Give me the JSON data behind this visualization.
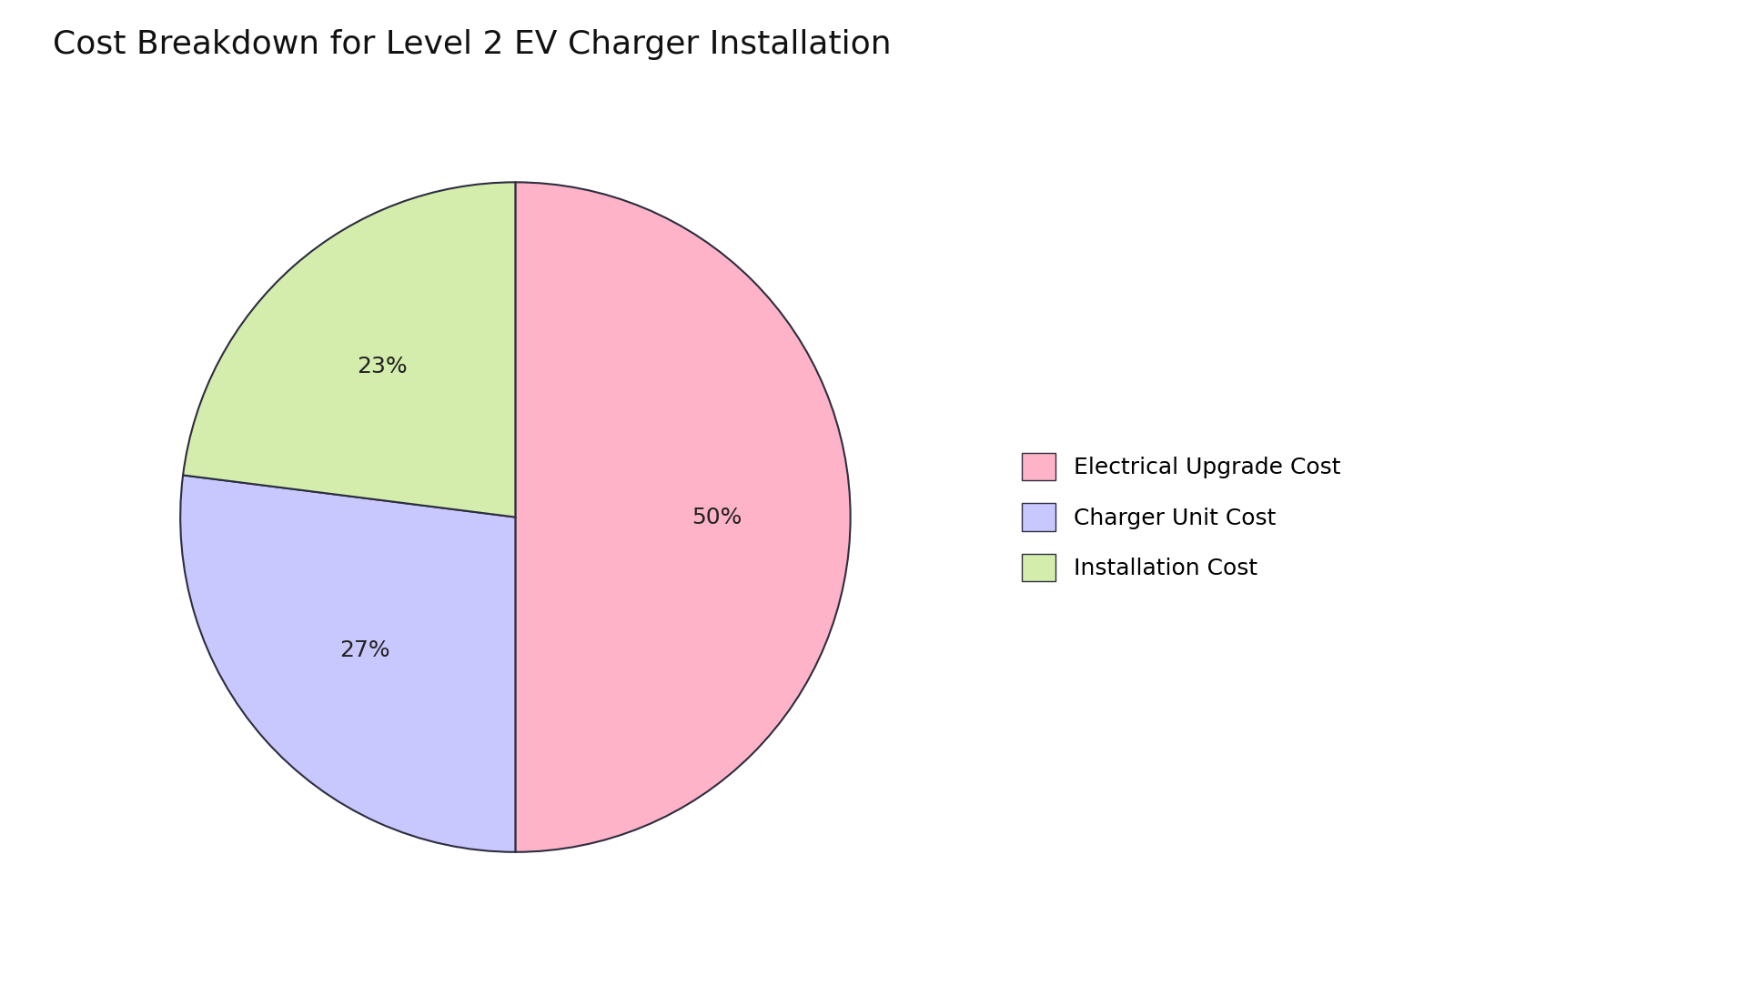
{
  "title": "Cost Breakdown for Level 2 EV Charger Installation",
  "labels": [
    "Electrical Upgrade Cost",
    "Charger Unit Cost",
    "Installation Cost"
  ],
  "values": [
    50,
    27,
    23
  ],
  "colors": [
    "#FFB3C8",
    "#C8C8FF",
    "#D4EDAC"
  ],
  "autopct_labels": [
    "50%",
    "27%",
    "23%"
  ],
  "edge_color": "#2D2D3F",
  "background_color": "#FFFFFF",
  "title_fontsize": 26,
  "autopct_fontsize": 18,
  "legend_fontsize": 18,
  "startangle": 90
}
